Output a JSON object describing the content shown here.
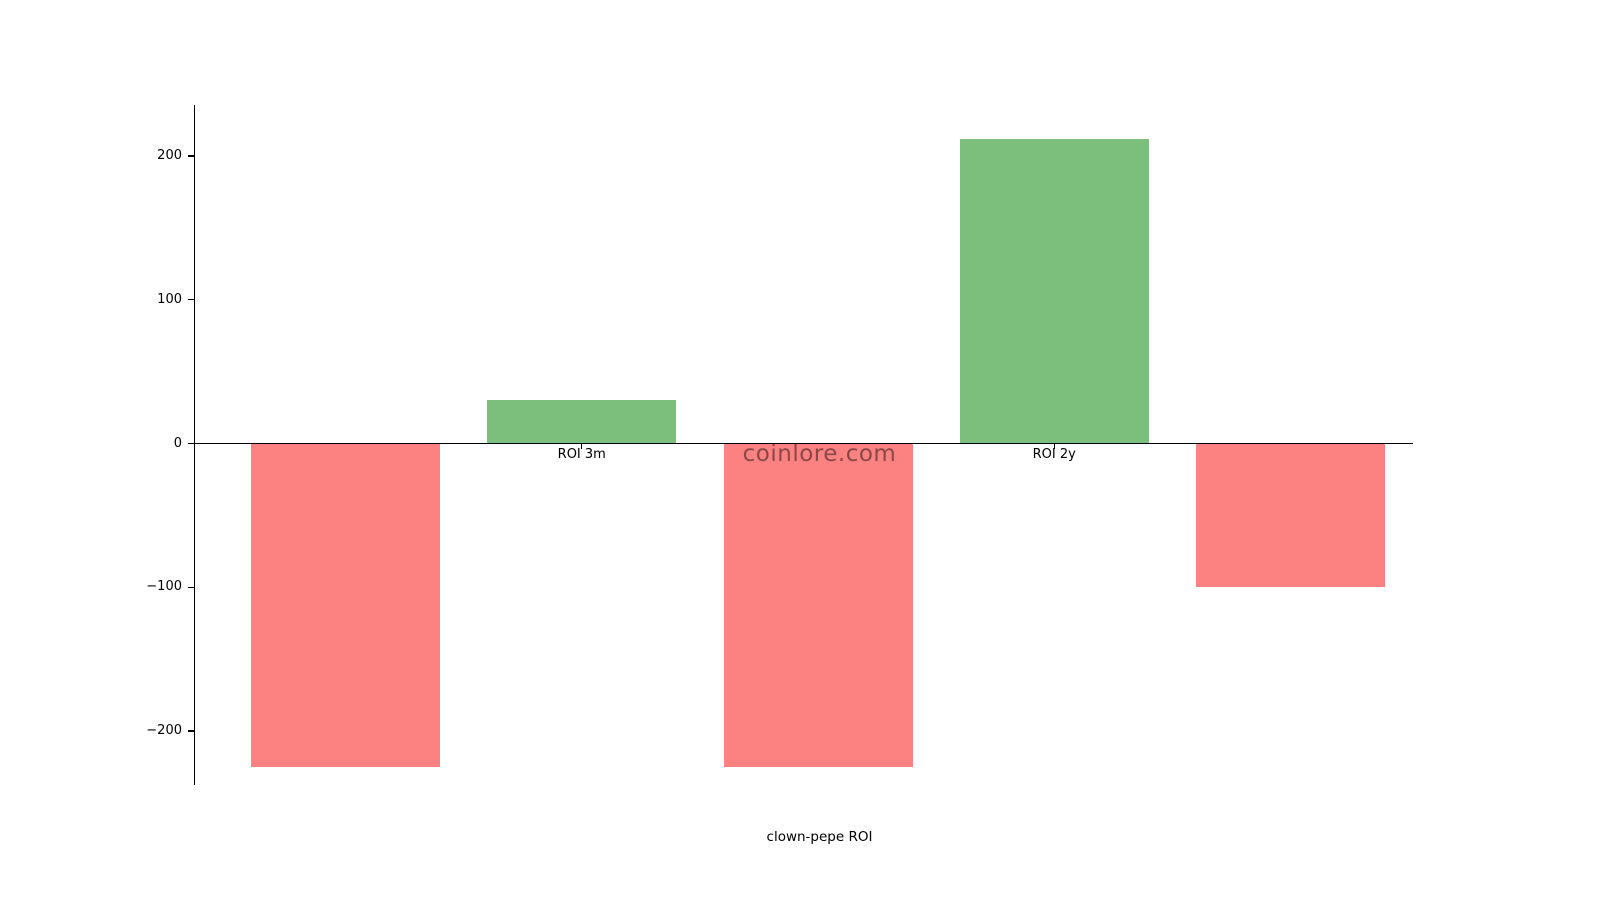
{
  "watermark": {
    "text": "coinlore.com"
  },
  "chart_data": {
    "type": "bar",
    "title": "",
    "xlabel": "clown-pepe ROI",
    "ylabel": "",
    "categories": [
      "",
      "ROI 3m",
      "",
      "ROI 2y",
      ""
    ],
    "values": [
      -225,
      30,
      -225,
      212,
      -100
    ],
    "yticks": [
      {
        "value": 200,
        "label": "200"
      },
      {
        "value": 100,
        "label": "100"
      },
      {
        "value": 0,
        "label": "0"
      },
      {
        "value": -100,
        "label": "−100"
      },
      {
        "value": -200,
        "label": "−200"
      }
    ],
    "ylim": [
      -237.5,
      235.5
    ],
    "grid": false,
    "legend": false,
    "colors": {
      "positive_bar": "#7cbe7c",
      "negative_bar": "#fc8181",
      "axis": "#000000"
    }
  }
}
